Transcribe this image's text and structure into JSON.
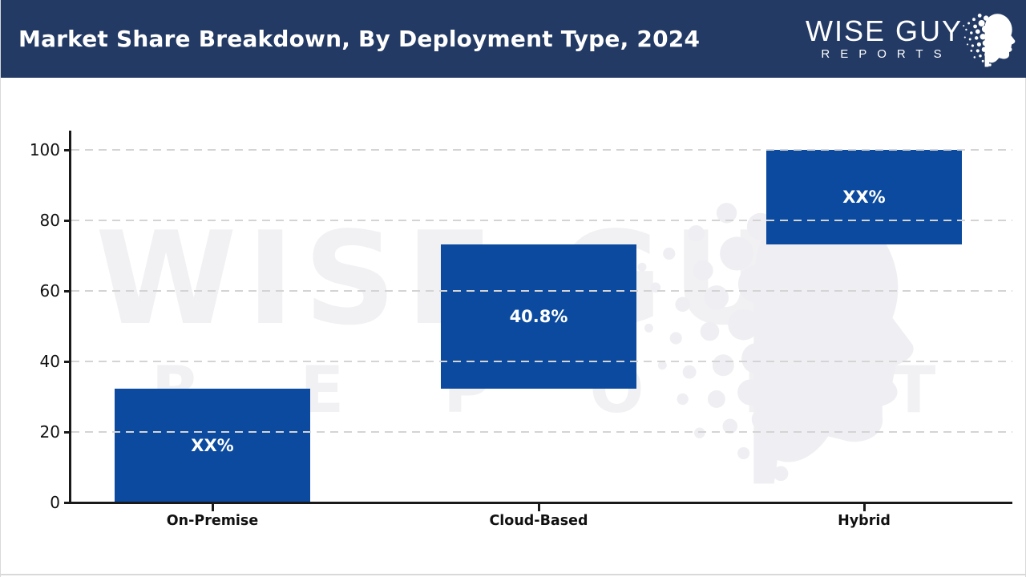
{
  "header": {
    "title": "Market Share Breakdown, By Deployment Type, 2024",
    "logo_line1": "WISE GUY",
    "logo_line2": "REPORTS"
  },
  "watermark": {
    "line1": "WISE GUY",
    "line2": "R E P O R T S"
  },
  "colors": {
    "header_bg": "#233a64",
    "bar_fill": "#0b4a9e",
    "grid_line": "#d4d4d4",
    "axis": "#1a1a1a",
    "bar_label_text": "#ffffff",
    "watermark_text": "#f1f1f4"
  },
  "chart_data": {
    "type": "bar",
    "subtype": "floating-segment-waterfall",
    "title": "Market Share Breakdown, By Deployment Type, 2024",
    "categories": [
      "On-Premise",
      "Cloud-Based",
      "Hybrid"
    ],
    "bars": [
      {
        "category": "On-Premise",
        "start": 0,
        "end": 32.3,
        "value_label": "XX%"
      },
      {
        "category": "Cloud-Based",
        "start": 32.3,
        "end": 73.1,
        "value_label": "40.8%"
      },
      {
        "category": "Hybrid",
        "start": 73.1,
        "end": 100,
        "value_label": "XX%"
      }
    ],
    "xlabel": "",
    "ylabel": "",
    "yticks": [
      0,
      20,
      40,
      60,
      80,
      100
    ],
    "ylim": [
      0,
      105.5
    ],
    "grid": "horizontal-dashed",
    "legend": "none"
  }
}
